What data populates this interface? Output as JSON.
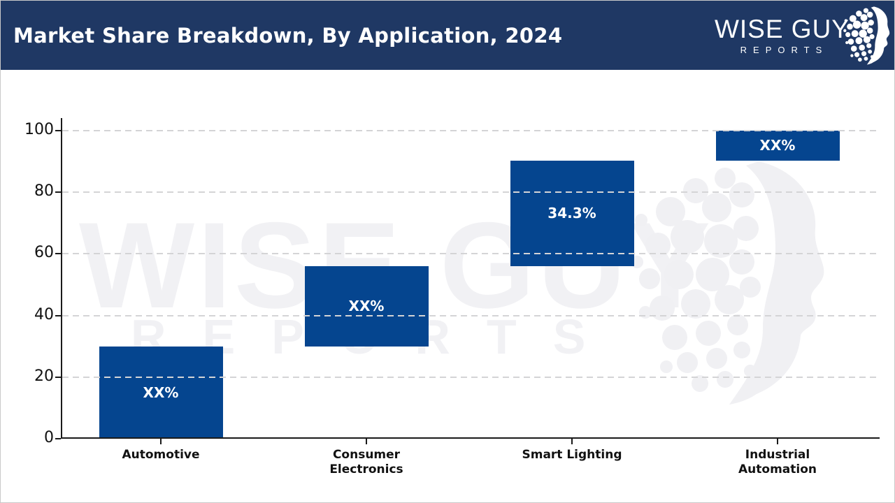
{
  "header": {
    "title": "Market Share Breakdown, By Application, 2024",
    "bg_color": "#1f3864",
    "logo": {
      "line1": "WISE GUY",
      "line2": "REPORTS"
    }
  },
  "watermark": {
    "line1": "WISE GUY",
    "line2": "REPORTS"
  },
  "chart_data": {
    "type": "bar",
    "subtype": "waterfall",
    "title": "Market Share Breakdown, By Application, 2024",
    "categories": [
      "Automotive",
      "Consumer Electronics",
      "Smart Lighting",
      "Industrial Automation"
    ],
    "segments": [
      {
        "category": "Automotive",
        "start": 0,
        "end": 30,
        "label": "XX%"
      },
      {
        "category": "Consumer Electronics",
        "start": 30,
        "end": 56,
        "label": "XX%"
      },
      {
        "category": "Smart Lighting",
        "start": 56,
        "end": 90.3,
        "label": "34.3%"
      },
      {
        "category": "Industrial Automation",
        "start": 90.3,
        "end": 100,
        "label": "XX%"
      }
    ],
    "ylim": [
      0,
      100
    ],
    "yticks": [
      0,
      20,
      40,
      60,
      80,
      100
    ],
    "grid": "horizontal dashed, drawn above bars",
    "legend": "none",
    "bar_color": "#05458f",
    "bar_label_color": "#ffffff",
    "axis_color": "#1a1a1a"
  }
}
